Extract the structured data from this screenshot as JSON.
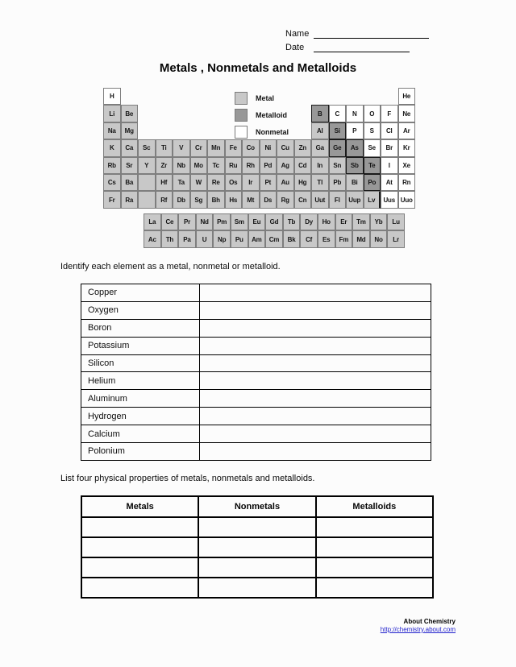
{
  "header": {
    "name_label": "Name",
    "date_label": "Date"
  },
  "title": "Metals , Nonmetals and Metalloids",
  "colors": {
    "metal": "#c8c8c8",
    "metalloid": "#989898",
    "nonmetal": "#ffffff",
    "link": "#2222cc"
  },
  "legend": [
    {
      "label": "Metal",
      "t": "m",
      "type": "metal"
    },
    {
      "label": "Metalloid",
      "t": "md",
      "type": "metalloid"
    },
    {
      "label": "Nonmetal",
      "t": "n",
      "type": "nonmetal"
    }
  ],
  "periodic_table": {
    "main_rows": [
      [
        {
          "s": "H",
          "t": "n"
        },
        null,
        null,
        null,
        null,
        null,
        null,
        null,
        null,
        null,
        null,
        null,
        null,
        null,
        null,
        null,
        null,
        {
          "s": "He",
          "t": "n"
        }
      ],
      [
        {
          "s": "Li",
          "t": "m"
        },
        {
          "s": "Be",
          "t": "m"
        },
        null,
        null,
        null,
        null,
        null,
        null,
        null,
        null,
        null,
        null,
        {
          "s": "B",
          "t": "md"
        },
        {
          "s": "C",
          "t": "n"
        },
        {
          "s": "N",
          "t": "n"
        },
        {
          "s": "O",
          "t": "n"
        },
        {
          "s": "F",
          "t": "n"
        },
        {
          "s": "Ne",
          "t": "n"
        }
      ],
      [
        {
          "s": "Na",
          "t": "m"
        },
        {
          "s": "Mg",
          "t": "m"
        },
        null,
        null,
        null,
        null,
        null,
        null,
        null,
        null,
        null,
        null,
        {
          "s": "Al",
          "t": "m"
        },
        {
          "s": "Si",
          "t": "md"
        },
        {
          "s": "P",
          "t": "n"
        },
        {
          "s": "S",
          "t": "n"
        },
        {
          "s": "Cl",
          "t": "n"
        },
        {
          "s": "Ar",
          "t": "n"
        }
      ],
      [
        {
          "s": "K",
          "t": "m"
        },
        {
          "s": "Ca",
          "t": "m"
        },
        {
          "s": "Sc",
          "t": "m"
        },
        {
          "s": "Ti",
          "t": "m"
        },
        {
          "s": "V",
          "t": "m"
        },
        {
          "s": "Cr",
          "t": "m"
        },
        {
          "s": "Mn",
          "t": "m"
        },
        {
          "s": "Fe",
          "t": "m"
        },
        {
          "s": "Co",
          "t": "m"
        },
        {
          "s": "Ni",
          "t": "m"
        },
        {
          "s": "Cu",
          "t": "m"
        },
        {
          "s": "Zn",
          "t": "m"
        },
        {
          "s": "Ga",
          "t": "m"
        },
        {
          "s": "Ge",
          "t": "md"
        },
        {
          "s": "As",
          "t": "md"
        },
        {
          "s": "Se",
          "t": "n"
        },
        {
          "s": "Br",
          "t": "n"
        },
        {
          "s": "Kr",
          "t": "n"
        }
      ],
      [
        {
          "s": "Rb",
          "t": "m"
        },
        {
          "s": "Sr",
          "t": "m"
        },
        {
          "s": "Y",
          "t": "m"
        },
        {
          "s": "Zr",
          "t": "m"
        },
        {
          "s": "Nb",
          "t": "m"
        },
        {
          "s": "Mo",
          "t": "m"
        },
        {
          "s": "Tc",
          "t": "m"
        },
        {
          "s": "Ru",
          "t": "m"
        },
        {
          "s": "Rh",
          "t": "m"
        },
        {
          "s": "Pd",
          "t": "m"
        },
        {
          "s": "Ag",
          "t": "m"
        },
        {
          "s": "Cd",
          "t": "m"
        },
        {
          "s": "In",
          "t": "m"
        },
        {
          "s": "Sn",
          "t": "m"
        },
        {
          "s": "Sb",
          "t": "md"
        },
        {
          "s": "Te",
          "t": "md"
        },
        {
          "s": "I",
          "t": "n"
        },
        {
          "s": "Xe",
          "t": "n"
        }
      ],
      [
        {
          "s": "Cs",
          "t": "m"
        },
        {
          "s": "Ba",
          "t": "m"
        },
        {
          "s": "",
          "t": "m"
        },
        {
          "s": "Hf",
          "t": "m"
        },
        {
          "s": "Ta",
          "t": "m"
        },
        {
          "s": "W",
          "t": "m"
        },
        {
          "s": "Re",
          "t": "m"
        },
        {
          "s": "Os",
          "t": "m"
        },
        {
          "s": "Ir",
          "t": "m"
        },
        {
          "s": "Pt",
          "t": "m"
        },
        {
          "s": "Au",
          "t": "m"
        },
        {
          "s": "Hg",
          "t": "m"
        },
        {
          "s": "Tl",
          "t": "m"
        },
        {
          "s": "Pb",
          "t": "m"
        },
        {
          "s": "Bi",
          "t": "m"
        },
        {
          "s": "Po",
          "t": "md"
        },
        {
          "s": "At",
          "t": "n"
        },
        {
          "s": "Rn",
          "t": "n"
        }
      ],
      [
        {
          "s": "Fr",
          "t": "m"
        },
        {
          "s": "Ra",
          "t": "m"
        },
        {
          "s": "",
          "t": "m"
        },
        {
          "s": "Rf",
          "t": "m"
        },
        {
          "s": "Db",
          "t": "m"
        },
        {
          "s": "Sg",
          "t": "m"
        },
        {
          "s": "Bh",
          "t": "m"
        },
        {
          "s": "Hs",
          "t": "m"
        },
        {
          "s": "Mt",
          "t": "m"
        },
        {
          "s": "Ds",
          "t": "m"
        },
        {
          "s": "Rg",
          "t": "m"
        },
        {
          "s": "Cn",
          "t": "m"
        },
        {
          "s": "Uut",
          "t": "m"
        },
        {
          "s": "Fl",
          "t": "m"
        },
        {
          "s": "Uup",
          "t": "m"
        },
        {
          "s": "Lv",
          "t": "m",
          "e": "r"
        },
        {
          "s": "Uus",
          "t": "n"
        },
        {
          "s": "Uuo",
          "t": "n"
        }
      ]
    ],
    "f_block_rows": [
      [
        "La",
        "Ce",
        "Pr",
        "Nd",
        "Pm",
        "Sm",
        "Eu",
        "Gd",
        "Tb",
        "Dy",
        "Ho",
        "Er",
        "Tm",
        "Yb",
        "Lu"
      ],
      [
        "Ac",
        "Th",
        "Pa",
        "U",
        "Np",
        "Pu",
        "Am",
        "Cm",
        "Bk",
        "Cf",
        "Es",
        "Fm",
        "Md",
        "No",
        "Lr"
      ]
    ]
  },
  "identify": {
    "instruction": "Identify each element as a metal, nonmetal or metalloid.",
    "elements": [
      "Copper",
      "Oxygen",
      "Boron",
      "Potassium",
      "Silicon",
      "Helium",
      "Aluminum",
      "Hydrogen",
      "Calcium",
      "Polonium"
    ]
  },
  "properties": {
    "instruction": "List four physical properties of metals, nonmetals and metalloids.",
    "headers": [
      "Metals",
      "Nonmetals",
      "Metalloids"
    ],
    "empty_rows": 4
  },
  "footer": {
    "source": "About Chemistry",
    "url": "http://chemistry.about.com"
  }
}
